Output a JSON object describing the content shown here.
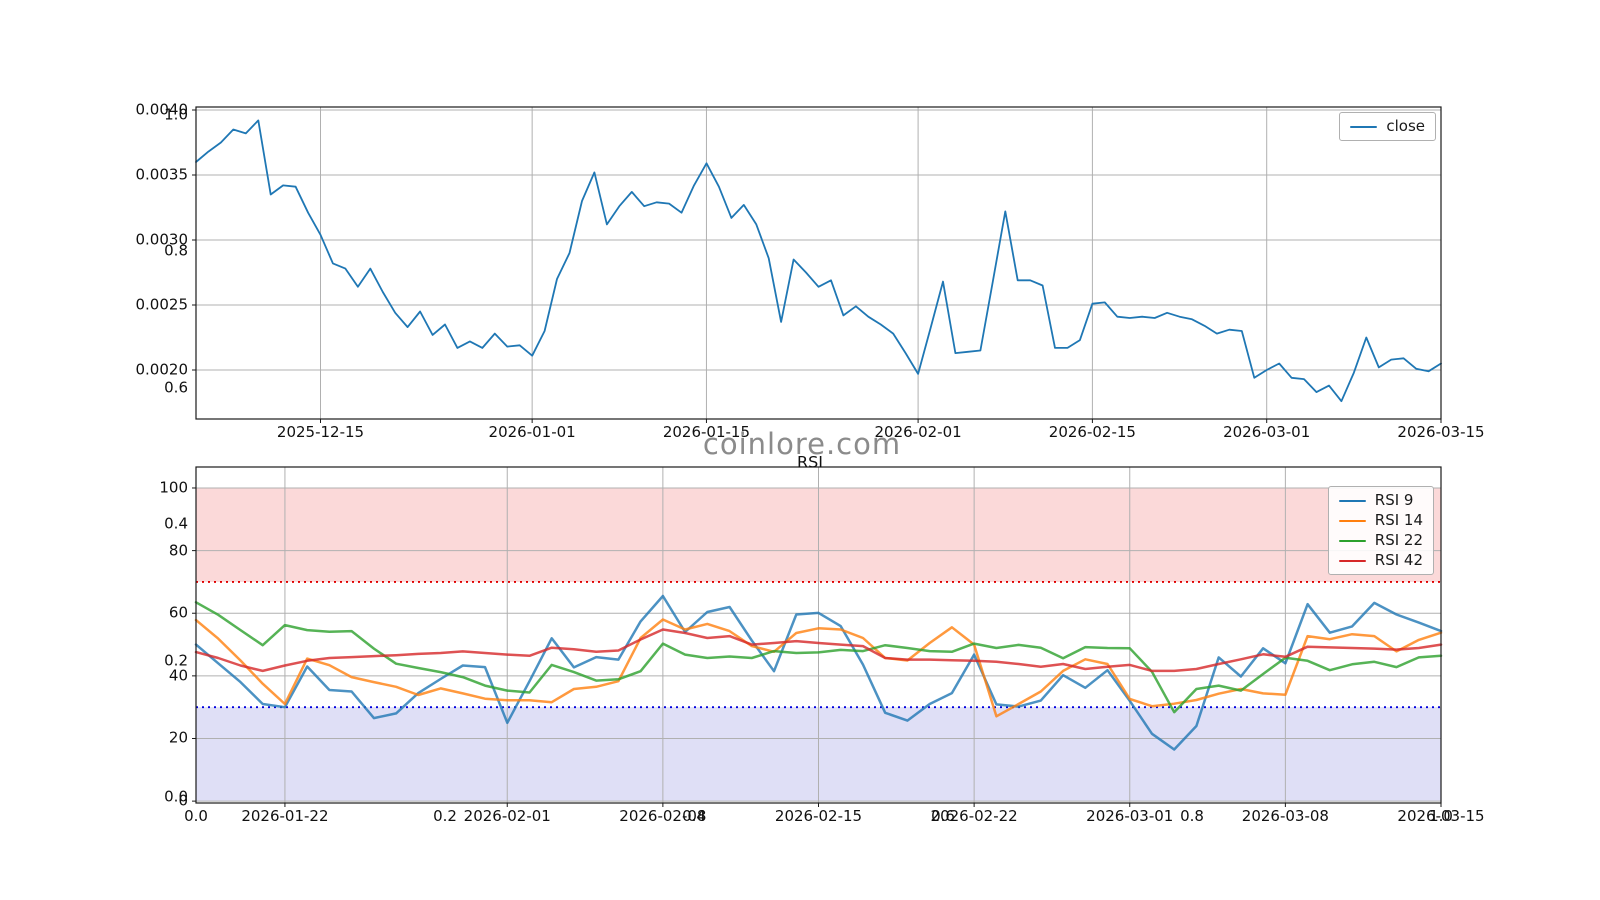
{
  "watermark": "coinlore.com",
  "rsi_title": "RSI",
  "colors": {
    "grid": "#b0b0b0",
    "spine": "#1a1a1a",
    "close_line": "#1f77b4",
    "rsi9_line": "#1f77b4",
    "rsi14_line": "#ff7f0e",
    "rsi22_line": "#2ca02c",
    "rsi42_line": "#d62728",
    "overbought_band": "#fbd9d9",
    "oversold_band": "#dfdff6",
    "overbought_dotted_line": "#e00000",
    "oversold_dotted_line": "#0000dd",
    "watermark_text": "#8b8b8b"
  },
  "overlay_axis": {
    "x_tick_labels": [
      "0.0",
      "0.2",
      "0.4",
      "0.6",
      "0.8",
      "1.0"
    ],
    "y_tick_labels": [
      "0.0",
      "0.2",
      "0.4",
      "0.6",
      "0.8",
      "1.0"
    ]
  },
  "chart_data": [
    {
      "type": "line",
      "name": "price",
      "x_start": "2025-12-05",
      "x_end": "2026-03-15",
      "frequency": "daily",
      "x_tick_labels": [
        "2025-12-15",
        "2026-01-01",
        "2026-01-15",
        "2026-02-01",
        "2026-02-15",
        "2026-03-01",
        "2026-03-15"
      ],
      "y_ticks": [
        0.002,
        0.0025,
        0.003,
        0.0035,
        0.004
      ],
      "y_tick_labels": [
        "0.0020",
        "0.0025",
        "0.0030",
        "0.0035",
        "0.0040"
      ],
      "ylim": [
        0.001623,
        0.004023
      ],
      "grid": true,
      "legend": {
        "position": "upper right",
        "entries": [
          "close"
        ]
      },
      "series": [
        {
          "name": "close",
          "color": "#1f77b4",
          "width": 1.8,
          "opacity": 1,
          "values": [
            0.0036,
            0.00368,
            0.00375,
            0.00385,
            0.00382,
            0.00392,
            0.00335,
            0.00342,
            0.00341,
            0.00321,
            0.00304,
            0.00282,
            0.00278,
            0.00264,
            0.00278,
            0.0026,
            0.00244,
            0.00233,
            0.00245,
            0.00227,
            0.00235,
            0.00217,
            0.00222,
            0.00217,
            0.00228,
            0.00218,
            0.00219,
            0.00211,
            0.0023,
            0.0027,
            0.0029,
            0.0033,
            0.00352,
            0.00312,
            0.00326,
            0.00337,
            0.00326,
            0.00329,
            0.00328,
            0.00321,
            0.00342,
            0.00359,
            0.00341,
            0.00317,
            0.00327,
            0.00312,
            0.00286,
            0.00237,
            0.00285,
            0.00275,
            0.00264,
            0.00269,
            0.00242,
            0.00249,
            0.00241,
            0.00235,
            0.00228,
            0.00213,
            0.00197,
            0.00232,
            0.00268,
            0.00213,
            0.00214,
            0.00215,
            0.00268,
            0.00322,
            0.00269,
            0.00269,
            0.00265,
            0.00217,
            0.00217,
            0.00223,
            0.00251,
            0.00252,
            0.00241,
            0.0024,
            0.00241,
            0.0024,
            0.00244,
            0.00241,
            0.00239,
            0.00234,
            0.00228,
            0.00231,
            0.0023,
            0.00194,
            0.002,
            0.00205,
            0.00194,
            0.00193,
            0.00183,
            0.00188,
            0.00176,
            0.00198,
            0.00225,
            0.00202,
            0.00208,
            0.00209,
            0.00201,
            0.00199,
            0.00205
          ]
        }
      ]
    },
    {
      "type": "line",
      "name": "rsi",
      "title": "RSI",
      "x_start": "2026-01-18",
      "x_end": "2026-03-15",
      "frequency": "daily",
      "x_tick_labels": [
        "2026-01-22",
        "2026-02-01",
        "2026-02-08",
        "2026-02-15",
        "2026-02-22",
        "2026-03-01",
        "2026-03-08",
        "2026-03-15"
      ],
      "y_ticks": [
        0,
        20,
        40,
        60,
        80,
        100
      ],
      "y_tick_labels": [
        "0",
        "20",
        "40",
        "60",
        "80",
        "100"
      ],
      "ylim": [
        -0.6,
        106.7
      ],
      "grid": true,
      "hlines": [
        {
          "y": 70,
          "color": "#e00000",
          "style": "dotted"
        },
        {
          "y": 30,
          "color": "#0000dd",
          "style": "dotted"
        }
      ],
      "bands": [
        {
          "from": 70,
          "to": 100,
          "color": "#fbd9d9",
          "name": "overbought-band"
        },
        {
          "from": 0,
          "to": 30,
          "color": "#dfdff6",
          "name": "oversold-band"
        }
      ],
      "legend": {
        "position": "upper right",
        "entries": [
          "RSI 9",
          "RSI 14",
          "RSI 22",
          "RSI 42"
        ]
      },
      "series": [
        {
          "name": "RSI 9",
          "color": "#1f77b4",
          "width": 2.5,
          "opacity": 0.8,
          "values": [
            50,
            44,
            38,
            31,
            30,
            43,
            35.5,
            35,
            26.5,
            28,
            34.5,
            39,
            43.3,
            42.8,
            25,
            38.3,
            52,
            42.7,
            46,
            45.2,
            57.4,
            65.5,
            54,
            60.4,
            62,
            51.3,
            41.5,
            59.6,
            60.1,
            55.9,
            43.6,
            28.2,
            25.7,
            31,
            34.5,
            46.8,
            30.9,
            30.2,
            32.1,
            40.2,
            36.2,
            41.8,
            32,
            21.5,
            16.5,
            24,
            45.9,
            39.8,
            48.8,
            44,
            62.9,
            53.8,
            55.8,
            63.3,
            59.6,
            57,
            54.3
          ]
        },
        {
          "name": "RSI 14",
          "color": "#ff7f0e",
          "width": 2.5,
          "opacity": 0.8,
          "values": [
            57.8,
            51.9,
            44.9,
            37.5,
            31,
            45.5,
            43.4,
            39.6,
            38,
            36.5,
            33.9,
            36,
            34.4,
            32.7,
            32.2,
            32.2,
            31.6,
            35.8,
            36.5,
            38.3,
            52.1,
            58,
            54.8,
            56.6,
            54.3,
            49.5,
            47.7,
            53.7,
            55.2,
            54.8,
            52.1,
            45.7,
            44.9,
            50.5,
            55.5,
            50,
            27.1,
            31,
            35,
            41.6,
            45.3,
            43.8,
            32.6,
            30.3,
            31.1,
            32.3,
            34.3,
            35.8,
            34.4,
            34,
            52.7,
            51.7,
            53.3,
            52.7,
            47.8,
            51.5,
            53.8
          ]
        },
        {
          "name": "RSI 22",
          "color": "#2ca02c",
          "width": 2.5,
          "opacity": 0.8,
          "values": [
            63.5,
            59.5,
            54.6,
            49.8,
            56.2,
            54.6,
            54.1,
            54.3,
            48.7,
            43.9,
            42.5,
            41.2,
            39.6,
            36.9,
            35.3,
            34.7,
            43.5,
            41.2,
            38.5,
            38.9,
            41.5,
            50.3,
            46.8,
            45.7,
            46.2,
            45.7,
            47.9,
            47.3,
            47.5,
            48.3,
            47.9,
            49.8,
            48.9,
            47.9,
            47.7,
            50.3,
            48.9,
            49.9,
            49,
            45.6,
            49.2,
            48.9,
            48.8,
            41.3,
            28.4,
            35.8,
            36.9,
            35.3,
            40.6,
            45.8,
            44.8,
            41.8,
            43.7,
            44.5,
            42.8,
            45.9,
            46.4
          ]
        },
        {
          "name": "RSI 42",
          "color": "#d62728",
          "width": 2.5,
          "opacity": 0.8,
          "values": [
            47.6,
            45.7,
            43.3,
            41.6,
            43.3,
            44.8,
            45.7,
            46,
            46.3,
            46.6,
            47,
            47.3,
            47.8,
            47.3,
            46.8,
            46.4,
            49,
            48.5,
            47.7,
            48.1,
            51.6,
            54.8,
            53.7,
            52.1,
            52.7,
            50,
            50.5,
            51.1,
            50.5,
            50,
            49.5,
            45.7,
            45.2,
            45.2,
            45,
            44.8,
            44.5,
            43.8,
            42.9,
            43.8,
            42.2,
            42.9,
            43.5,
            41.6,
            41.6,
            42.2,
            43.8,
            45.3,
            46.9,
            46.1,
            49.3,
            49.1,
            48.9,
            48.7,
            48.4,
            48.9,
            50
          ]
        }
      ]
    }
  ]
}
